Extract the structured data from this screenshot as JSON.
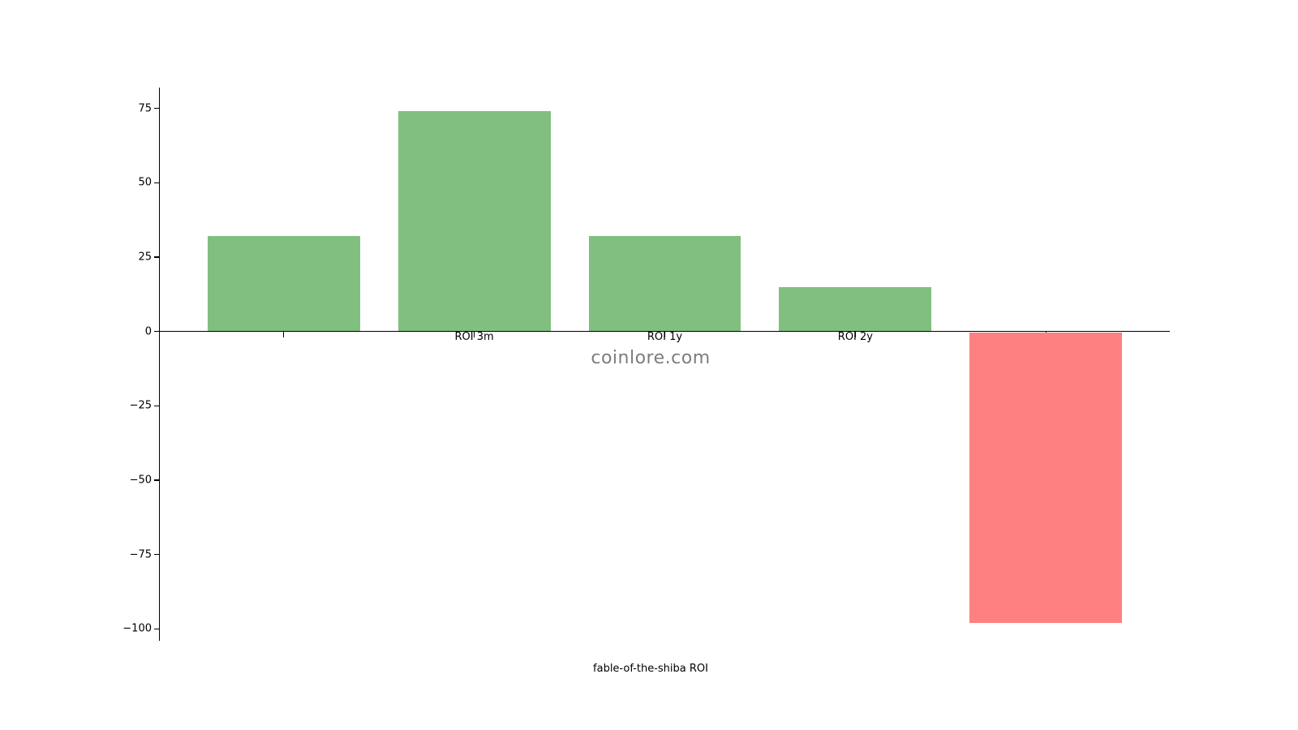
{
  "watermark": "coinlore.com",
  "chart_data": {
    "type": "bar",
    "categories": [
      "",
      "ROI 3m",
      "ROI 1y",
      "ROI 2y",
      ""
    ],
    "values": [
      32,
      74,
      32,
      15,
      -98
    ],
    "title": "fable-of-the-shiba ROI",
    "xlabel": "",
    "ylabel": "",
    "xlim": [
      -0.65,
      4.65
    ],
    "ylim": [
      -104,
      82
    ],
    "bar_width": 0.8,
    "yticks": [
      75,
      50,
      25,
      0,
      -25,
      -50,
      -75,
      -100
    ],
    "ytick_labels": [
      "75",
      "50",
      "25",
      "0",
      "−25",
      "−50",
      "−75",
      "−100"
    ],
    "grid": false,
    "legend": null,
    "colors": {
      "positive_bar": "#80bf80",
      "negative_bar": "#ff8080",
      "axis": "#000000",
      "tick_text": "#000000",
      "watermark_text": "#7d7d7d"
    }
  }
}
